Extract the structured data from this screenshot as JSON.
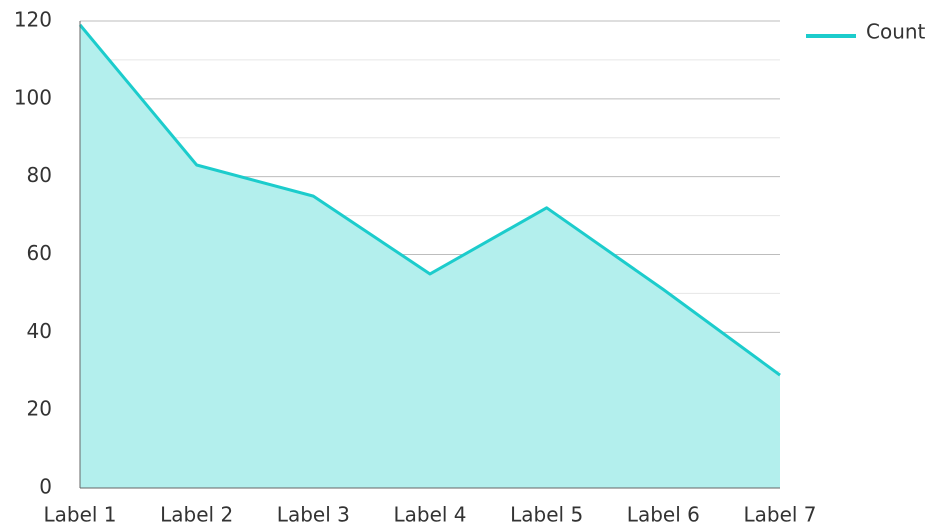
{
  "chart_data": {
    "type": "area",
    "categories": [
      "Label 1",
      "Label 2",
      "Label 3",
      "Label 4",
      "Label 5",
      "Label 6",
      "Label 7"
    ],
    "series": [
      {
        "name": "Count",
        "color": "#1ccccc",
        "fill": "#b3efed",
        "values": [
          119,
          83,
          75,
          55,
          72,
          51,
          29
        ]
      }
    ],
    "ylim": [
      0,
      120
    ],
    "yticks": [
      0,
      20,
      40,
      60,
      80,
      100,
      120
    ],
    "minor_yticks": [
      10,
      30,
      50,
      70,
      90,
      110
    ],
    "grid": true,
    "legend": "top-right"
  }
}
